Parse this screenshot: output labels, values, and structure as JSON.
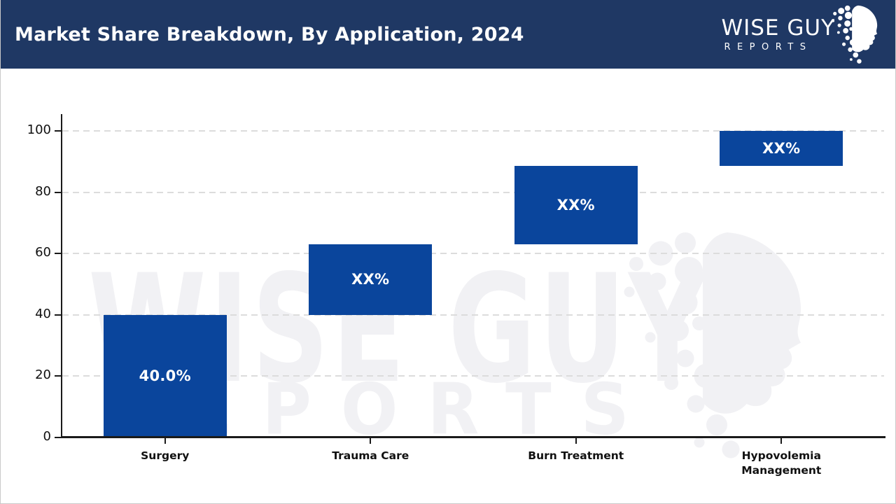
{
  "header": {
    "title": "Market Share Breakdown, By Application, 2024",
    "logo": {
      "line1": "WISE GUY",
      "line2": "REPORTS"
    }
  },
  "watermark": {
    "line1": "WISE GUY",
    "line2": "REPORTS"
  },
  "colors": {
    "header_bg": "#1f3864",
    "bar_fill": "#0a459c",
    "gridline": "#dcdcdc",
    "axis": "#1a1a1a",
    "bar_label_text": "#ffffff",
    "watermark": "#f1f1f4",
    "page_border": "#c9c9c9"
  },
  "chart_data": {
    "type": "bar",
    "subtype": "floating-waterfall",
    "title": "Market Share Breakdown, By Application, 2024",
    "categories": [
      "Surgery",
      "Trauma Care",
      "Burn Treatment",
      "Hypovolemia Management"
    ],
    "segments": [
      {
        "label": "Surgery",
        "start": 0,
        "end": 40,
        "value": 40.0,
        "value_label": "40.0%"
      },
      {
        "label": "Trauma Care",
        "start": 40,
        "end": 63,
        "value": 23.0,
        "value_label": "XX%"
      },
      {
        "label": "Burn Treatment",
        "start": 63,
        "end": 88.5,
        "value": 25.5,
        "value_label": "XX%"
      },
      {
        "label": "Hypovolemia Management",
        "start": 88.5,
        "end": 100,
        "value": 11.5,
        "value_label": "XX%"
      }
    ],
    "xlabel": "",
    "ylabel": "",
    "ylim": [
      0,
      100
    ],
    "yticks": [
      0,
      20,
      40,
      60,
      80,
      100
    ],
    "grid": "horizontal-dashed",
    "legend": "none"
  }
}
